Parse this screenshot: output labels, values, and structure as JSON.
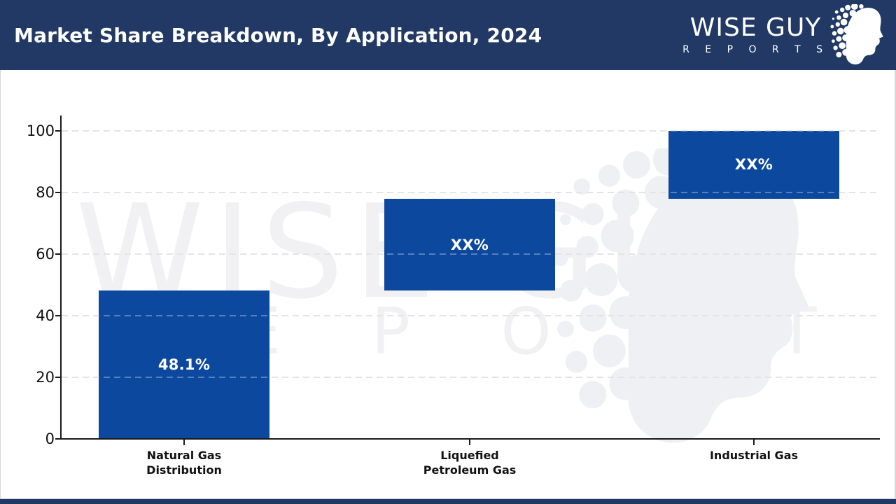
{
  "header": {
    "title": "Market Share Breakdown, By Application, 2024",
    "brand": {
      "name": "WISE GUY",
      "sub": "R E P O R T S"
    }
  },
  "watermark": {
    "line1": "WISE GUY",
    "line2": "R E P O R T S"
  },
  "chart_data": {
    "type": "bar",
    "subtype": "waterfall-stacked-to-100",
    "title": "Market Share Breakdown, By Application, 2024",
    "categories": [
      "Natural Gas Distribution",
      "Liquefied Petroleum Gas",
      "Industrial Gas"
    ],
    "category_lines": [
      [
        "Natural Gas",
        "Distribution"
      ],
      [
        "Liquefied",
        "Petroleum Gas"
      ],
      [
        "Industrial Gas"
      ]
    ],
    "segments": [
      {
        "category": "Natural Gas Distribution",
        "start": 0,
        "end": 48.1,
        "label": "48.1%"
      },
      {
        "category": "Liquefied Petroleum Gas",
        "start": 48.1,
        "end": 78,
        "label": "XX%"
      },
      {
        "category": "Industrial Gas",
        "start": 78,
        "end": 100,
        "label": "XX%"
      }
    ],
    "xlabel": "",
    "ylabel": "",
    "ylim": [
      0,
      100
    ],
    "yticks": [
      0,
      20,
      40,
      60,
      80,
      100
    ],
    "grid": "horizontal dashed",
    "legend": "none"
  },
  "colors": {
    "header_bg": "#213964",
    "footer_bg": "#213964",
    "bar": "#0c499e",
    "bar_label": "#ffffff",
    "grid": "#d9d9d9",
    "axis": "#1a1a1a",
    "watermark": "#f1f1f4"
  }
}
